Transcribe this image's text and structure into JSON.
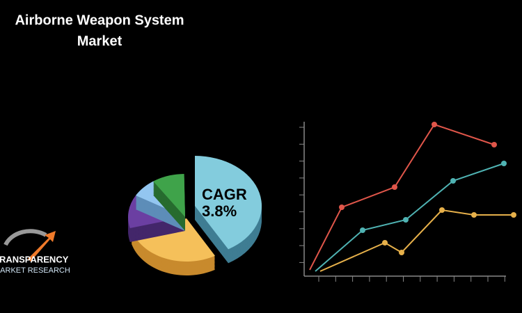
{
  "header": {
    "title_line1": "Airborne Weapon System",
    "title_line2": "Market"
  },
  "badge": {
    "label": "CAGR",
    "value": "3.8%"
  },
  "logo": {
    "name": "TRANSPARENCY",
    "subtitle": "MARKET RESEARCH"
  }
}
